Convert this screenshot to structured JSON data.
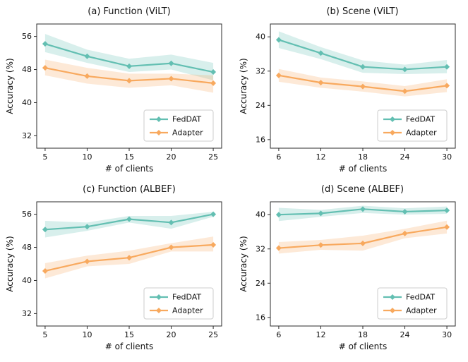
{
  "figure": {
    "background": "#ffffff",
    "text_color": "#111111",
    "spine_color": "#2b2b2b",
    "legend_border_color": "#cccccc",
    "band_opacity": 0.25
  },
  "chart_data": [
    {
      "id": "a",
      "type": "line",
      "title": "(a) Function (ViLT)",
      "xlabel": "# of clients",
      "ylabel": "Accuracy (%)",
      "x": [
        5,
        10,
        15,
        20,
        25
      ],
      "xticks": [
        5,
        10,
        15,
        20,
        25
      ],
      "yticks": [
        32,
        40,
        48,
        56
      ],
      "xlim": [
        4,
        26
      ],
      "ylim": [
        29,
        59
      ],
      "grid": false,
      "legend_position": "lower right",
      "series": [
        {
          "name": "FedDAT",
          "color": "#63bfb2",
          "values": [
            54.2,
            51.2,
            48.8,
            49.5,
            47.4
          ],
          "upper": [
            56.6,
            52.8,
            50.6,
            51.6,
            49.6
          ],
          "lower": [
            52.2,
            49.6,
            47.4,
            48.0,
            45.4
          ]
        },
        {
          "name": "Adapter",
          "color": "#f8a95e",
          "values": [
            48.4,
            46.4,
            45.3,
            45.8,
            44.7
          ],
          "upper": [
            50.4,
            48.4,
            47.0,
            47.0,
            46.6
          ],
          "lower": [
            46.6,
            44.6,
            43.6,
            44.2,
            42.4
          ]
        }
      ]
    },
    {
      "id": "b",
      "type": "line",
      "title": "(b) Scene (ViLT)",
      "xlabel": "# of clients",
      "ylabel": "Accuracy (%)",
      "x": [
        6,
        12,
        18,
        24,
        30
      ],
      "xticks": [
        6,
        12,
        18,
        24,
        30
      ],
      "yticks": [
        16,
        24,
        32,
        40
      ],
      "xlim": [
        4.8,
        31.2
      ],
      "ylim": [
        14,
        43
      ],
      "grid": false,
      "legend_position": "lower right",
      "series": [
        {
          "name": "FedDAT",
          "color": "#63bfb2",
          "values": [
            39.3,
            36.2,
            33.0,
            32.4,
            33.0
          ],
          "upper": [
            41.3,
            37.6,
            34.5,
            33.5,
            34.6
          ],
          "lower": [
            37.4,
            34.8,
            31.6,
            31.3,
            31.5
          ]
        },
        {
          "name": "Adapter",
          "color": "#f8a95e",
          "values": [
            31.0,
            29.3,
            28.4,
            27.3,
            28.6
          ],
          "upper": [
            32.5,
            30.5,
            29.6,
            28.5,
            30.1
          ],
          "lower": [
            29.5,
            28.1,
            27.2,
            26.1,
            27.1
          ]
        }
      ]
    },
    {
      "id": "c",
      "type": "line",
      "title": "(c) Function (ALBEF)",
      "xlabel": "# of clients",
      "ylabel": "Accuracy (%)",
      "x": [
        5,
        10,
        15,
        20,
        25
      ],
      "xticks": [
        5,
        10,
        15,
        20,
        25
      ],
      "yticks": [
        32,
        40,
        48,
        56
      ],
      "xlim": [
        4,
        26
      ],
      "ylim": [
        29,
        59
      ],
      "grid": false,
      "legend_position": "lower right",
      "series": [
        {
          "name": "FedDAT",
          "color": "#63bfb2",
          "values": [
            52.3,
            53.0,
            54.8,
            54.0,
            56.0
          ],
          "upper": [
            54.4,
            54.0,
            55.6,
            55.6,
            56.6
          ],
          "lower": [
            50.4,
            52.0,
            54.0,
            52.5,
            55.4
          ]
        },
        {
          "name": "Adapter",
          "color": "#f8a95e",
          "values": [
            42.3,
            44.6,
            45.5,
            48.0,
            48.6
          ],
          "upper": [
            44.2,
            46.0,
            47.2,
            49.0,
            50.6
          ],
          "lower": [
            40.5,
            43.4,
            44.0,
            47.0,
            47.0
          ]
        }
      ]
    },
    {
      "id": "d",
      "type": "line",
      "title": "(d) Scene (ALBEF)",
      "xlabel": "# of clients",
      "ylabel": "Accuracy (%)",
      "x": [
        6,
        12,
        18,
        24,
        30
      ],
      "xticks": [
        6,
        12,
        18,
        24,
        30
      ],
      "yticks": [
        16,
        24,
        32,
        40
      ],
      "xlim": [
        4.8,
        31.2
      ],
      "ylim": [
        14,
        43
      ],
      "grid": false,
      "legend_position": "lower right",
      "series": [
        {
          "name": "FedDAT",
          "color": "#63bfb2",
          "values": [
            40.0,
            40.3,
            41.3,
            40.7,
            41.0
          ],
          "upper": [
            41.6,
            41.1,
            42.1,
            41.5,
            41.9
          ],
          "lower": [
            38.5,
            39.5,
            40.4,
            40.0,
            40.2
          ]
        },
        {
          "name": "Adapter",
          "color": "#f8a95e",
          "values": [
            32.2,
            32.9,
            33.3,
            35.6,
            37.1
          ],
          "upper": [
            33.6,
            34.1,
            35.1,
            36.7,
            38.6
          ],
          "lower": [
            30.9,
            31.8,
            31.6,
            34.5,
            35.6
          ]
        }
      ]
    }
  ]
}
